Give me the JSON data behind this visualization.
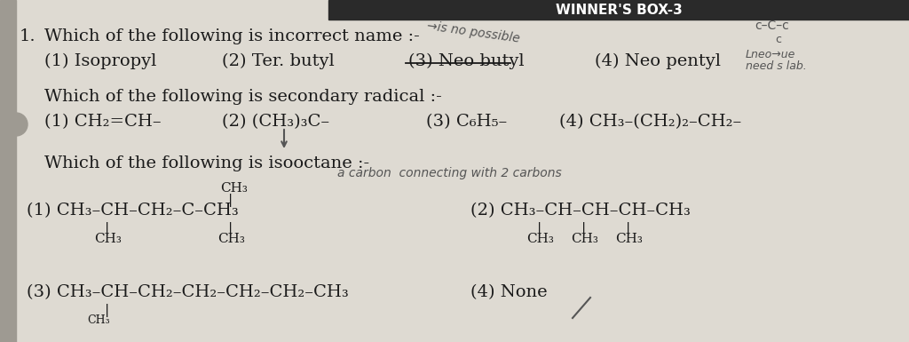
{
  "bg_color": "#ccc8be",
  "paper_color": "#dedad2",
  "text_color": "#1a1a1a",
  "handwritten_color": "#555555",
  "title_bar_color": "#2a2a2a",
  "title_bar_text": "WINNER'S BOX-3",
  "title_bar_text_color": "#ffffff",
  "left_strip_color": "#9e9a92",
  "q1_number": "1.",
  "q1_text": "Which of the following is incorrect name :-",
  "q1_o1": "(1) Isopropyl",
  "q1_o2": "(2) Ter. butyl",
  "q1_o3": "(3) Neo butyl",
  "q1_o4": "(4) Neo pentyl",
  "q1_hw1": "→is no possible",
  "q1_hw2": "c–C–c",
  "q1_hw3": "      c",
  "q1_hw4": "Lneo→ue",
  "q1_hw5": "need s lab.",
  "q2_text": "Which of the following is secondary radical :-",
  "q2_o1": "(1) CH₂=CH–",
  "q2_o2": "(2) (CH₃)₃C–",
  "q2_o3": "(3) C₆H₅–",
  "q2_o4": "(4) CH₃–(CH₂)₂–CH₂–",
  "q3_text": "Which of the following is isooctane :-",
  "q3_hw": "a carbon  connecting with 2 carbons",
  "q3_o1_main": "(1) CH₃–CH–CH₂–C–CH₃",
  "q3_o1_top_label": "CH₃",
  "q3_o1_ch_label": "CH₃",
  "q3_o1_c_label": "CH₃",
  "q3_o2_main": "(2) CH₃–CH–CH–CH–CH₃",
  "q3_o2_s1": "CH₃",
  "q3_o2_s2": "CH₃",
  "q3_o2_s3": "CH₃",
  "q3_o3_main": "(3) CH₃–CH–CH₂–CH₂–CH₂–CH₂–CH₃",
  "q3_o3_branch": "CH₃",
  "q3_o4": "(4) None",
  "fs_main": 14,
  "fs_sub": 11,
  "fs_hw": 10
}
